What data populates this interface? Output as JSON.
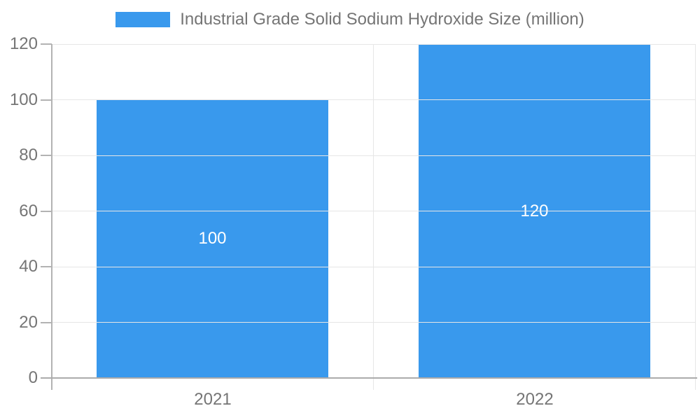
{
  "chart_data": {
    "type": "bar",
    "legend": "Industrial Grade Solid Sodium Hydroxide Size (million)",
    "categories": [
      "2021",
      "2022"
    ],
    "values": [
      100,
      120
    ],
    "data_labels": [
      "100",
      "120"
    ],
    "yticks": [
      0,
      20,
      40,
      60,
      80,
      100,
      120
    ],
    "ylim": [
      0,
      120
    ],
    "grid": true,
    "legend_position": "top"
  },
  "colors": {
    "bar": "#3999ED",
    "axis_text": "#757575",
    "gridline": "#e6e6e6",
    "axis_line": "#b3b3b3",
    "baseline": "#ababab",
    "value_label": "#ffffff"
  }
}
